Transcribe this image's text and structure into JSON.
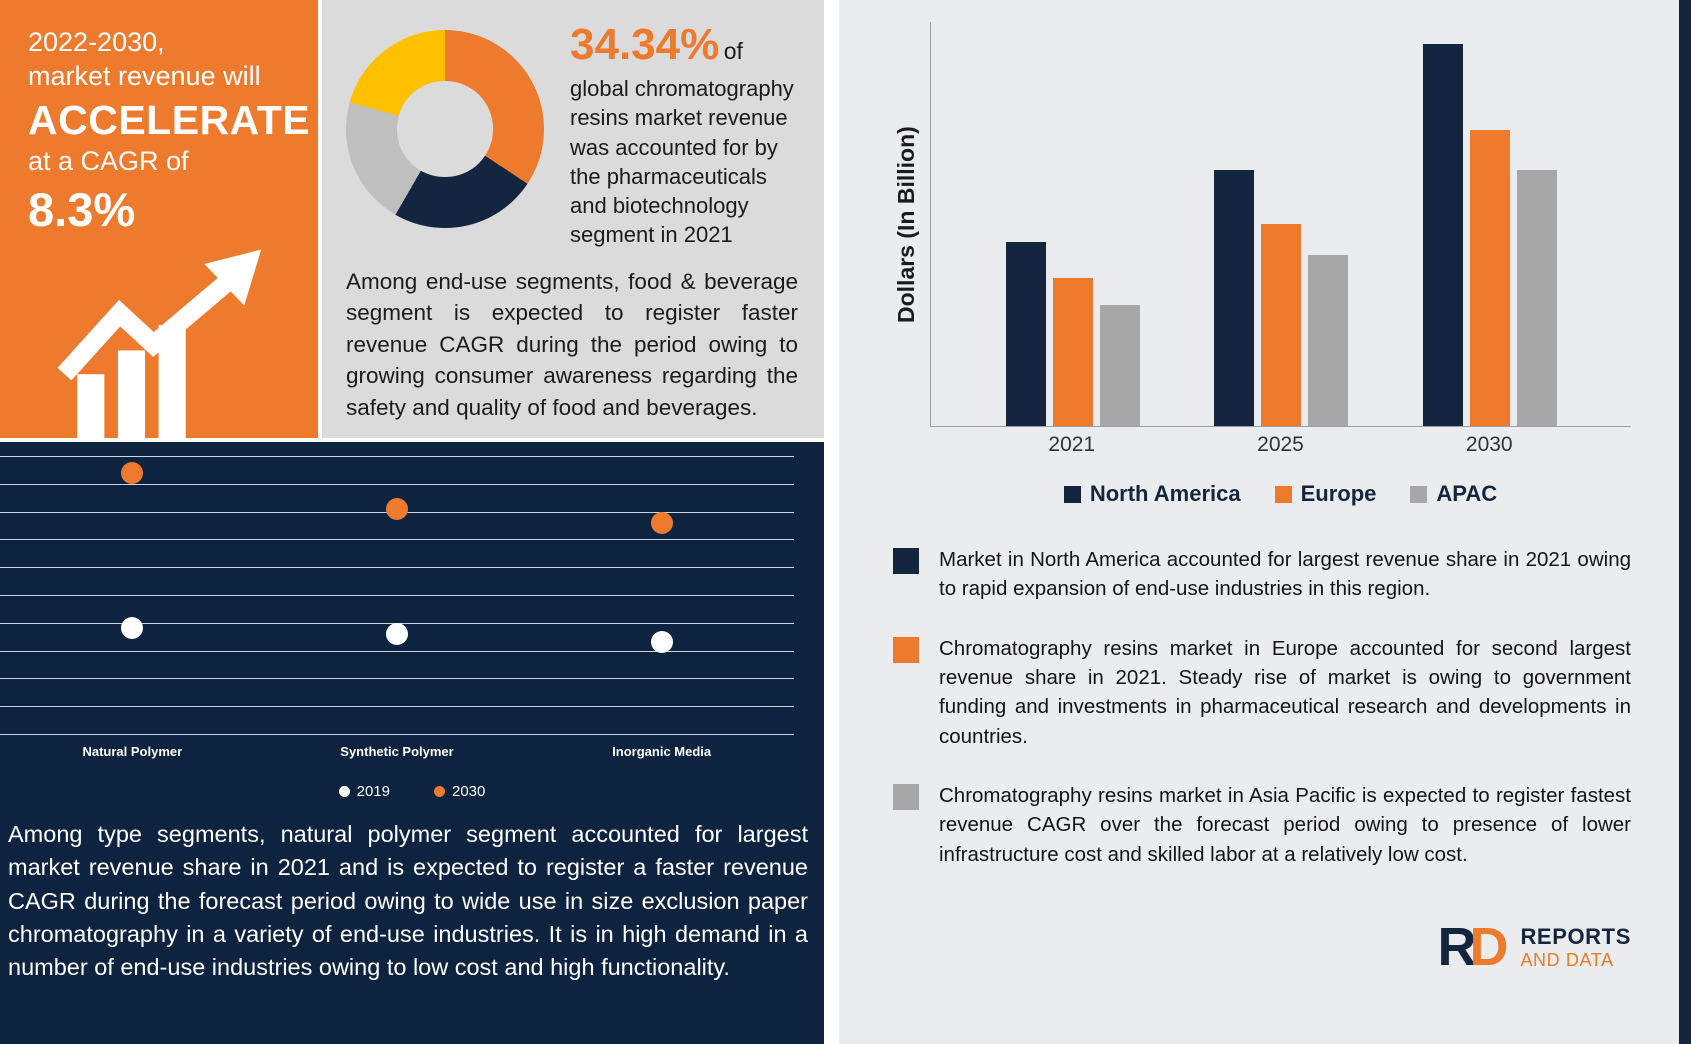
{
  "colors": {
    "orange": "#EE7A2E",
    "navy": "#14263F",
    "panel_navy": "#0E2340",
    "apac_gray": "#A7A7A7",
    "donut_gray": "#BFBFBF",
    "yellow": "#FFC000",
    "panel_gray": "#DBDBDB",
    "right_bg": "#EAECEE",
    "white": "#FFFFFF"
  },
  "cagr_panel": {
    "line1": "2022-2030,",
    "line2": "market revenue will",
    "accelerate": "ACCELERATE",
    "line3": "at a CAGR of",
    "value": "8.3%"
  },
  "segment_panel": {
    "stat_value": "34.34%",
    "stat_suffix": "of",
    "stat_description": "global chromatography resins market revenue was accounted for by the pharmaceuticals and biotechnology segment in 2021",
    "paragraph": "Among end-use segments, food & beverage segment is expected to register faster revenue CAGR during the period owing to growing consumer awareness regarding the safety and quality of food and beverages."
  },
  "type_panel": {
    "paragraph": "Among type segments, natural polymer segment accounted for largest market revenue share in 2021 and is expected to register a faster revenue CAGR during the forecast period owing to wide use in size exclusion paper chromatography in a variety of end-use industries. It is in high demand in a number of end-use industries owing to low cost and high functionality."
  },
  "regional_panel": {
    "bullets": [
      {
        "color": "#14263F",
        "text": "Market in North America accounted for largest revenue share in 2021 owing to rapid expansion of end-use industries in this region."
      },
      {
        "color": "#EE7A2E",
        "text": "Chromatography resins market in Europe accounted for second largest revenue share in 2021. Steady rise of market is owing to government funding and investments in pharmaceutical research and developments in countries."
      },
      {
        "color": "#A7A7A7",
        "text": "Chromatography resins market in Asia Pacific is expected to register fastest revenue CAGR over the forecast period owing to presence of lower infrastructure cost and skilled labor at a relatively low cost."
      }
    ]
  },
  "logo": {
    "letter_r": "R",
    "letter_d": "D",
    "top": "REPORTS",
    "bottom": "AND DATA"
  },
  "chart_data": [
    {
      "type": "pie",
      "title": "",
      "donut": true,
      "slices": [
        {
          "label": "pharmaceuticals and biotechnology (2021)",
          "value": 34.34,
          "color": "#EE7A2E"
        },
        {
          "label": "",
          "value": 24,
          "color": "#14263F"
        },
        {
          "label": "",
          "value": 21,
          "color": "#BFBFBF"
        },
        {
          "label": "",
          "value": 20.66,
          "color": "#FFC000"
        }
      ]
    },
    {
      "type": "scatter",
      "categories": [
        "Natural Polymer",
        "Synthetic Polymer",
        "Inorganic Media"
      ],
      "series": [
        {
          "name": "2019",
          "color": "#FFFFFF",
          "values": [
            3.8,
            3.6,
            3.3
          ]
        },
        {
          "name": "2030",
          "color": "#EE7A2E",
          "values": [
            9.4,
            8.1,
            7.6
          ]
        }
      ],
      "ylim": [
        0,
        10
      ],
      "gridlines": 11,
      "grid": true,
      "legend_position": "bottom"
    },
    {
      "type": "bar",
      "categories": [
        "2021",
        "2025",
        "2030"
      ],
      "xlabel": "",
      "ylabel": "Dollars (In Billion)",
      "ylim": [
        0,
        9
      ],
      "grid": false,
      "legend_position": "bottom",
      "series": [
        {
          "name": "North America",
          "color": "#14263F",
          "values": [
            4.1,
            5.7,
            8.5
          ]
        },
        {
          "name": "Europe",
          "color": "#EE7A2E",
          "values": [
            3.3,
            4.5,
            6.6
          ]
        },
        {
          "name": "APAC",
          "color": "#A7A7A7",
          "values": [
            2.7,
            3.8,
            5.7
          ]
        }
      ]
    }
  ]
}
